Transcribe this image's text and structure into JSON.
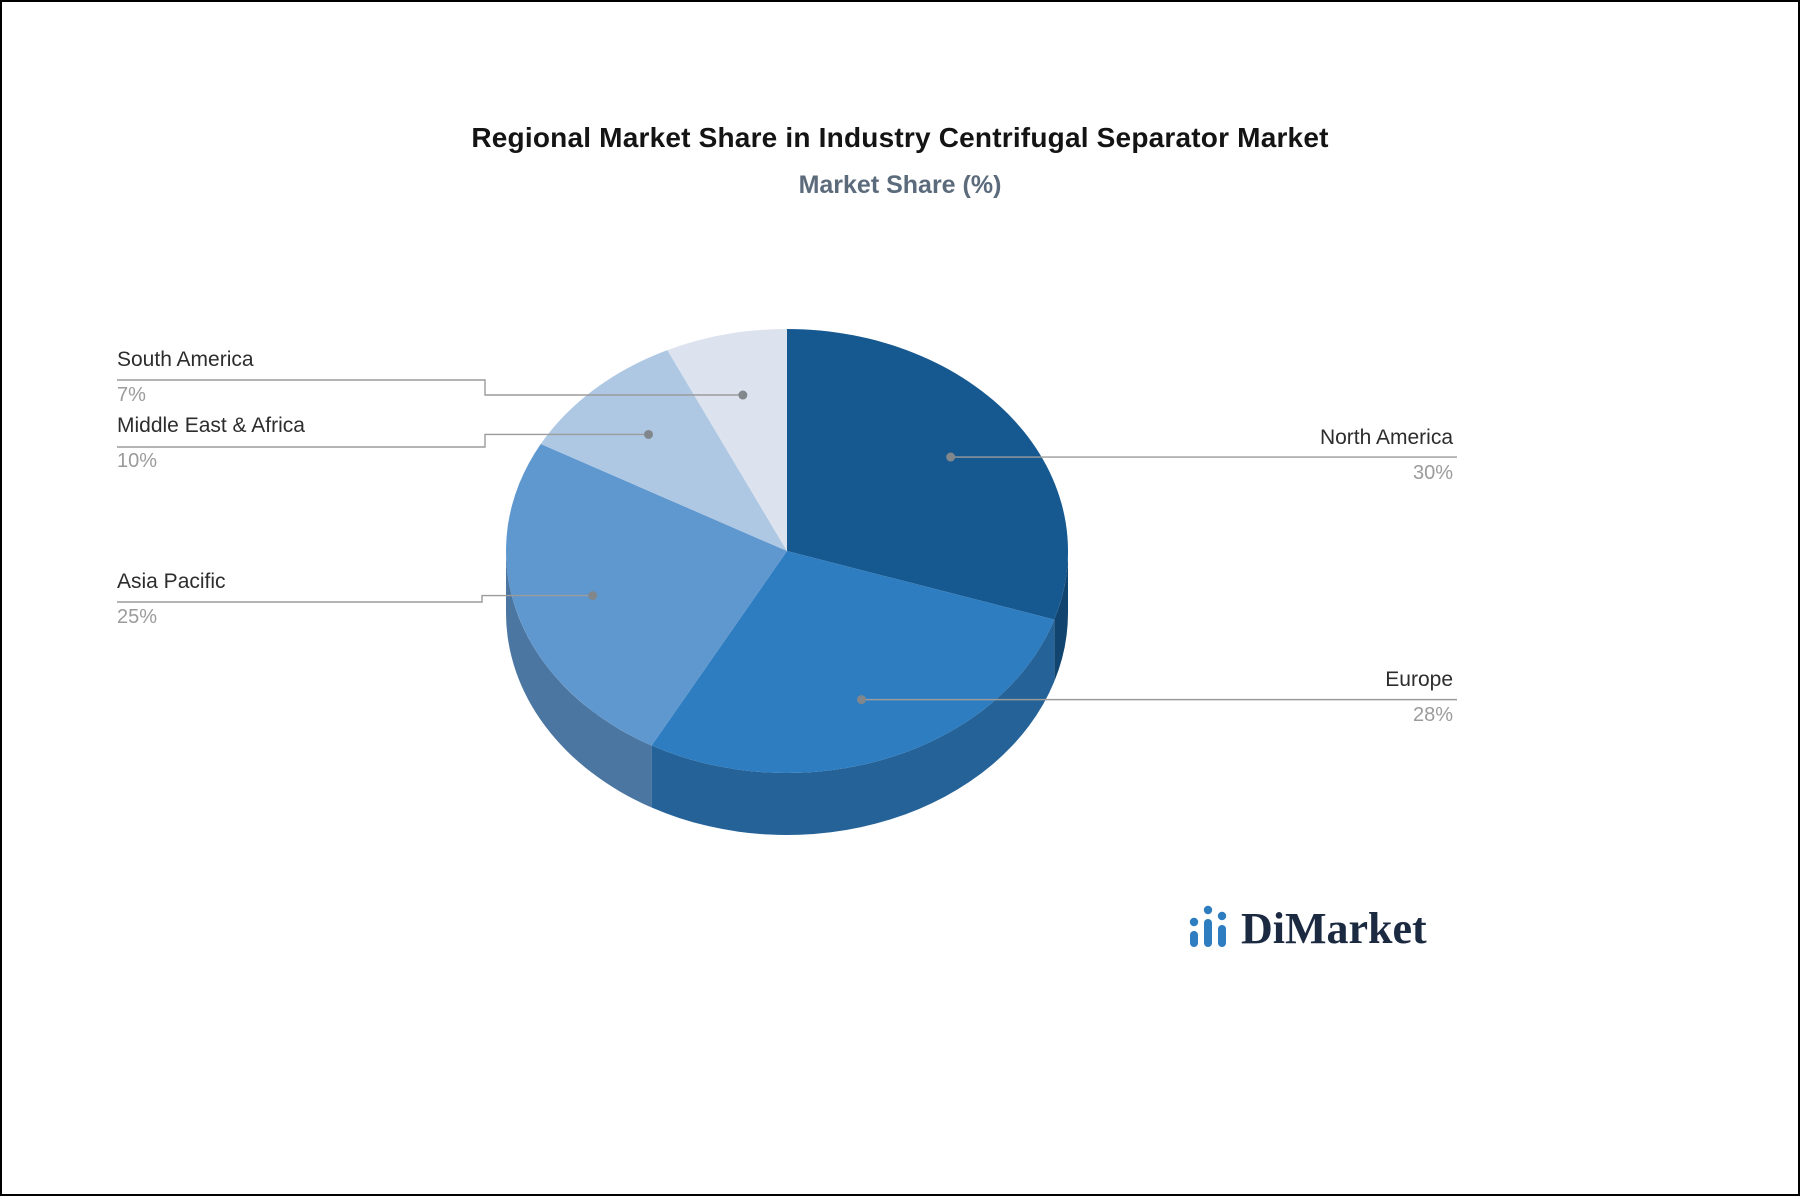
{
  "title": "Regional Market Share in Industry Centrifugal Separator Market",
  "subtitle": "Market Share (%)",
  "brand": {
    "name": "DiMarket",
    "icon": "bar-chart-icon",
    "icon_color": "#2e7dc1",
    "text_color": "#1b2a41"
  },
  "chart_data": {
    "type": "pie",
    "title": "Regional Market Share in Industry Centrifugal Separator Market",
    "subtitle": "Market Share (%)",
    "unit": "%",
    "effect": "3d",
    "direction": "clockwise",
    "start_angle_deg": 0,
    "legend_position": "callout-labels",
    "slices": [
      {
        "name": "North America",
        "value": 30,
        "display": "30%",
        "color": "#165990"
      },
      {
        "name": "Europe",
        "value": 28,
        "display": "28%",
        "color": "#2e7dc1"
      },
      {
        "name": "Asia Pacific",
        "value": 25,
        "display": "25%",
        "color": "#5f97cf"
      },
      {
        "name": "Middle East & Africa",
        "value": 10,
        "display": "10%",
        "color": "#aec8e4"
      },
      {
        "name": "South America",
        "value": 7,
        "display": "7%",
        "color": "#dde3ee"
      }
    ]
  }
}
